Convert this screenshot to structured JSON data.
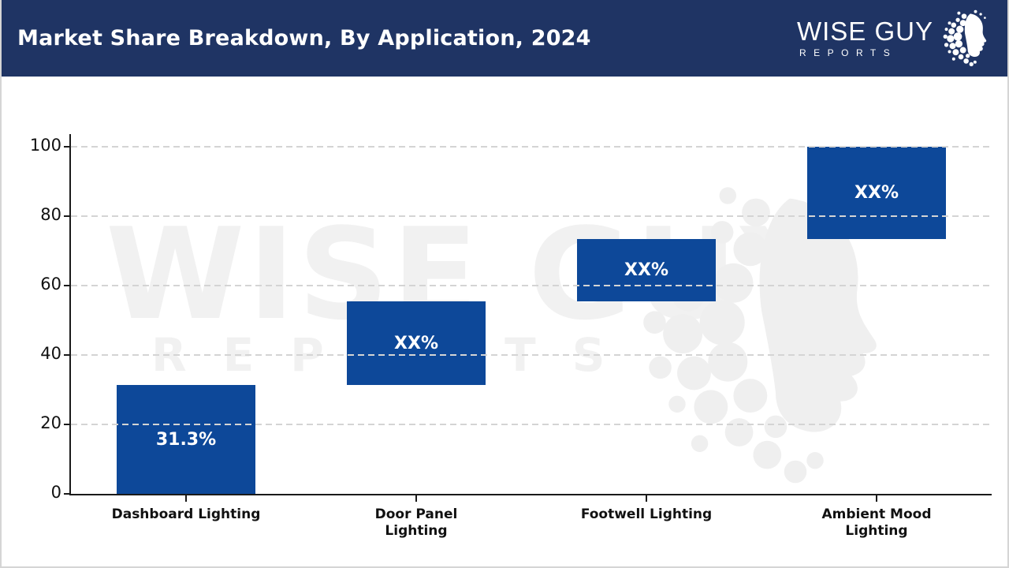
{
  "header": {
    "title": "Market Share Breakdown, By Application, 2024"
  },
  "logo": {
    "wordmark": "WISE GUY",
    "subtext": "REPORTS"
  },
  "watermark": {
    "wordmark": "WISE GUY",
    "subtext": "REPORTS"
  },
  "colors": {
    "header_bg": "#1f3464",
    "bar": "#0d4899",
    "grid": "#d4d4d4",
    "axis": "#1a1a1a",
    "watermark": "#f1f1f1"
  },
  "chart_data": {
    "type": "bar",
    "subtype": "waterfall",
    "title": "Market Share Breakdown, By Application, 2024",
    "categories": [
      "Dashboard Lighting",
      "Door Panel\nLighting",
      "Footwell Lighting",
      "Ambient Mood\nLighting"
    ],
    "segments": [
      {
        "category": "Dashboard Lighting",
        "start": 0,
        "end": 31.3,
        "label": "31.3%"
      },
      {
        "category": "Door Panel Lighting",
        "start": 31.3,
        "end": 55.5,
        "label": "XX%"
      },
      {
        "category": "Footwell Lighting",
        "start": 55.5,
        "end": 73.3,
        "label": "XX%"
      },
      {
        "category": "Ambient Mood Lighting",
        "start": 73.3,
        "end": 100,
        "label": "XX%"
      }
    ],
    "yticks": [
      0,
      20,
      40,
      60,
      80,
      100
    ],
    "ylim": [
      0,
      105
    ],
    "xlabel": "",
    "ylabel": "",
    "grid": "horizontal-dashed",
    "legend": "none"
  }
}
